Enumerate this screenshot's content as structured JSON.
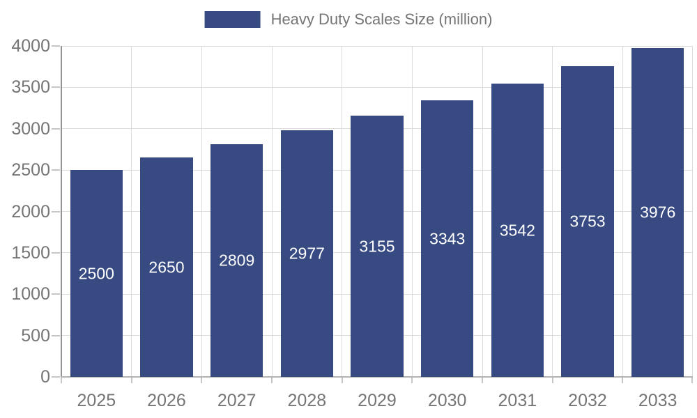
{
  "legend": {
    "label": "Heavy Duty Scales Size (million)",
    "swatch_color": "#374a82"
  },
  "chart_data": {
    "type": "bar",
    "title": "Heavy Duty Scales Size (million)",
    "categories": [
      "2025",
      "2026",
      "2027",
      "2028",
      "2029",
      "2030",
      "2031",
      "2032",
      "2033"
    ],
    "values": [
      2500,
      2650,
      2809,
      2977,
      3155,
      3343,
      3542,
      3753,
      3976
    ],
    "xlabel": "",
    "ylabel": "",
    "ylim": [
      0,
      4000
    ],
    "yticks": [
      0,
      500,
      1000,
      1500,
      2000,
      2500,
      3000,
      3500,
      4000
    ],
    "grid": true,
    "legend_position": "top-center",
    "bar_width_ratio": 0.75,
    "bar_color": "#374a82",
    "value_label_color": "#ffffff",
    "axis_text_color": "#757575",
    "gridline_color": "#dcdcdc",
    "axis_line_color": "#949494",
    "tick_color": "#c6c6c6",
    "baseline_color": "#b3b3b3"
  }
}
